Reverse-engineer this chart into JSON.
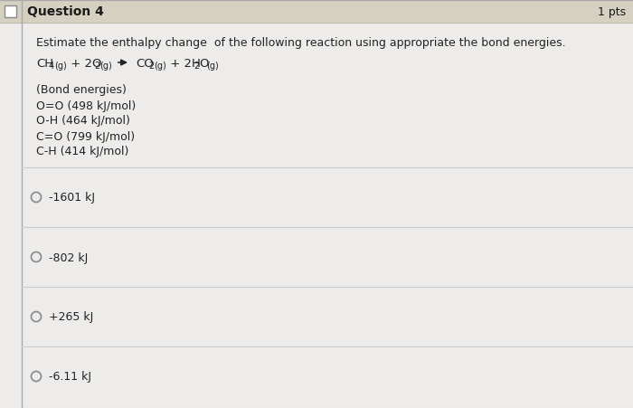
{
  "title": "Question 4",
  "pts": "1 pts",
  "instruction": "Estimate the enthalpy change  of the following reaction using appropriate the bond energies.",
  "bond_energies_title": "(Bond energies)",
  "bond_energies": [
    "O=O (498 kJ/mol)",
    "O-H (464 kJ/mol)",
    "C=O (799 kJ/mol)",
    "C-H (414 kJ/mol)"
  ],
  "choices": [
    "-1601 kJ",
    "-802 kJ",
    "+265 kJ",
    "-6.11 kJ"
  ],
  "header_bg": "#d6d0c0",
  "body_bg": "#edecea",
  "sep_color": "#cccccc",
  "header_text_color": "#1a1a1a",
  "body_text_color": "#222222",
  "font_size_title": 10,
  "font_size_body": 9,
  "font_size_reaction": 9.5,
  "font_size_sub": 7
}
